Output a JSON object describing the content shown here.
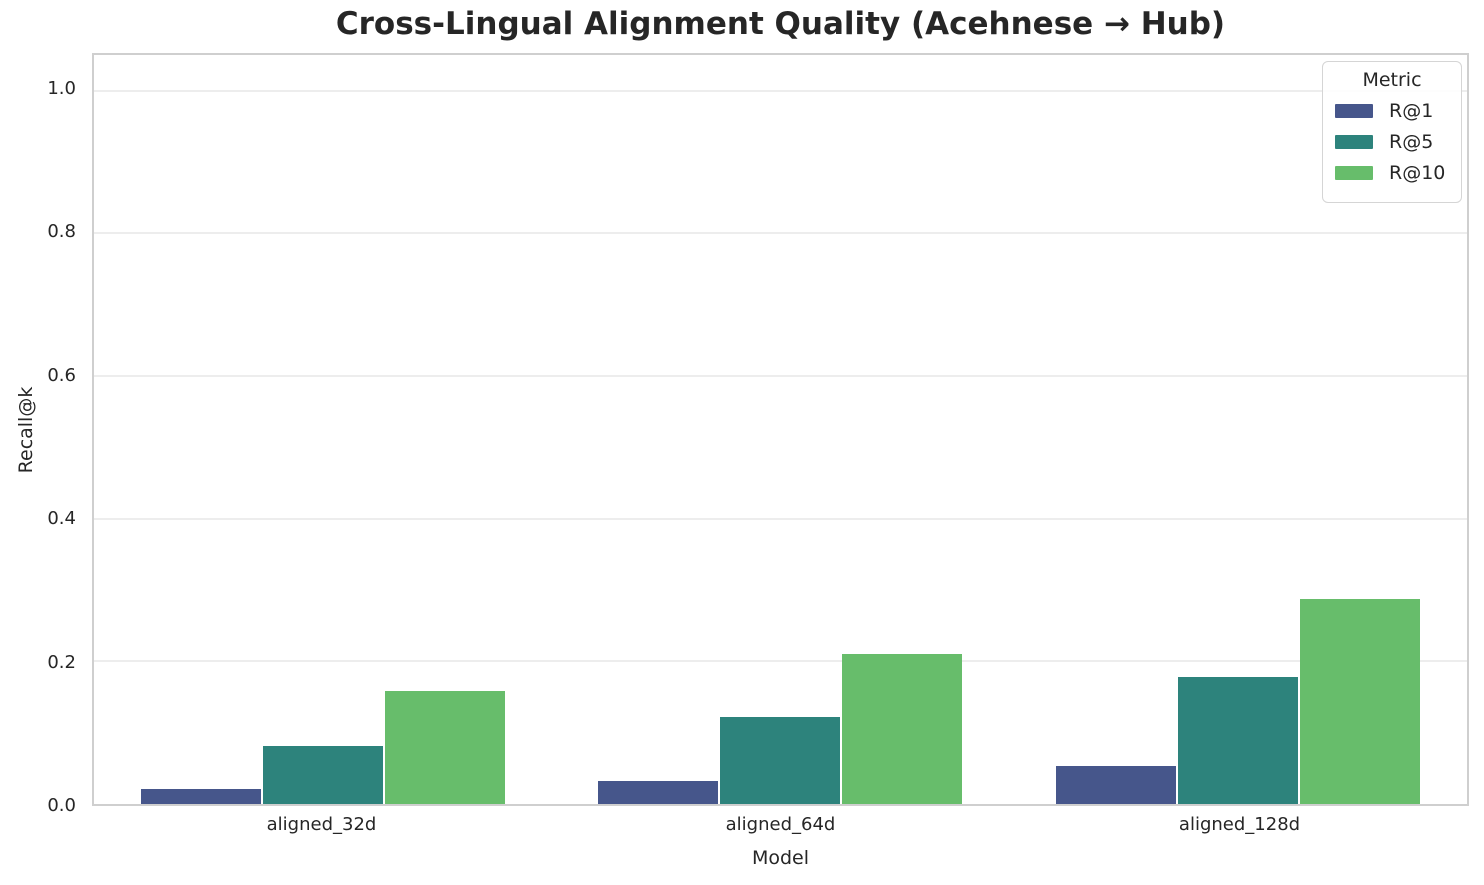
{
  "chart_data": {
    "type": "bar",
    "title": "Cross-Lingual Alignment Quality (Acehnese → Hub)",
    "xlabel": "Model",
    "ylabel": "Recall@k",
    "categories": [
      "aligned_32d",
      "aligned_64d",
      "aligned_128d"
    ],
    "series": [
      {
        "name": "R@1",
        "color": "#46568b",
        "values": [
          0.021,
          0.032,
          0.053
        ]
      },
      {
        "name": "R@5",
        "color": "#2d837c",
        "values": [
          0.082,
          0.122,
          0.178
        ]
      },
      {
        "name": "R@10",
        "color": "#67bd6b",
        "values": [
          0.159,
          0.211,
          0.288
        ]
      }
    ],
    "legend_title": "Metric",
    "legend_position": "upper right",
    "grid": true,
    "ylim": [
      0,
      1.05
    ],
    "ytick_values": [
      0,
      0.2,
      0.4,
      0.6,
      0.8,
      1.0
    ],
    "yticks": [
      "0.0",
      "0.2",
      "0.4",
      "0.6",
      "0.8",
      "1.0"
    ]
  },
  "colors": {
    "background": "#ffffff",
    "text": "#262626",
    "grid": "#ededed",
    "spine": "#cfcfcf",
    "legend_border": "#d5d5d5"
  }
}
